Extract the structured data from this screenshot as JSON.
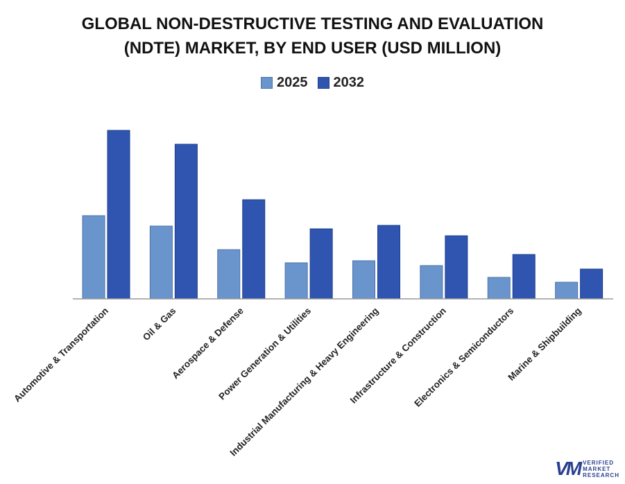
{
  "chart_data": {
    "type": "bar",
    "title_lines": [
      "GLOBAL NON-DESTRUCTIVE TESTING AND EVALUATION",
      "(NDTE) MARKET, BY END USER (USD MILLION)"
    ],
    "categories": [
      "Automotive & Transportation",
      "Oil & Gas",
      "Aerospace & Defense",
      "Power Generation & Utilities",
      "Industrial Manufacturing & Heavy Engineering",
      "Infrastructure & Construction",
      "Electronics & Semiconductors",
      "Marine & Shipbuilding"
    ],
    "series": [
      {
        "name": "2025",
        "color": "#6a95cc",
        "values": [
          120,
          105,
          71,
          52,
          55,
          48,
          31,
          24
        ]
      },
      {
        "name": "2032",
        "color": "#2f55b0",
        "values": [
          243,
          223,
          143,
          101,
          106,
          91,
          64,
          43
        ]
      }
    ],
    "ylim": [
      0,
      250
    ],
    "y_axis_shown": false,
    "grid": false,
    "legend_position": "top-center"
  },
  "logo": {
    "lines": [
      "VERIFIED",
      "MARKET",
      "RESEARCH"
    ]
  }
}
